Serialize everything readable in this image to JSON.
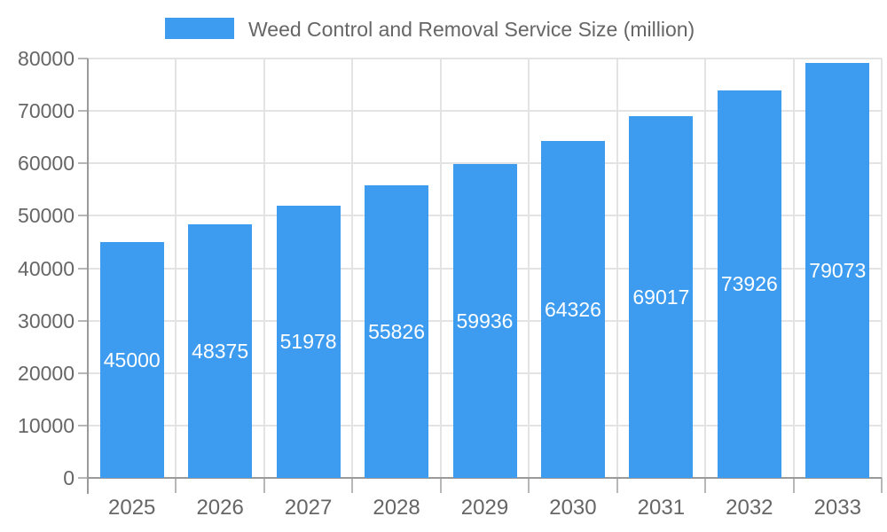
{
  "chart_data": {
    "type": "bar",
    "title": "Weed Control and Removal Service Size (million)",
    "categories": [
      "2025",
      "2026",
      "2027",
      "2028",
      "2029",
      "2030",
      "2031",
      "2032",
      "2033"
    ],
    "values": [
      45000,
      48375,
      51978,
      55826,
      59936,
      64326,
      69017,
      73926,
      79073
    ],
    "value_labels": [
      "45000",
      "48375",
      "51978",
      "55826",
      "59936",
      "64326",
      "69017",
      "73926",
      "79073"
    ],
    "xlabel": "",
    "ylabel": "",
    "ylim": [
      0,
      80000
    ],
    "y_tick_step": 10000,
    "y_tick_labels": [
      "0",
      "10000",
      "20000",
      "30000",
      "40000",
      "50000",
      "60000",
      "70000",
      "80000"
    ],
    "grid": true,
    "legend_position": "top",
    "colors": {
      "bar": "#3d9cf0",
      "bar_label": "#ffffff",
      "grid_line": "#e3e3e3",
      "axis_line": "#9a9a9a",
      "tick_mark": "#b7b7b7",
      "tick_label": "#666666",
      "legend_text": "#666666",
      "background": "#ffffff"
    }
  }
}
